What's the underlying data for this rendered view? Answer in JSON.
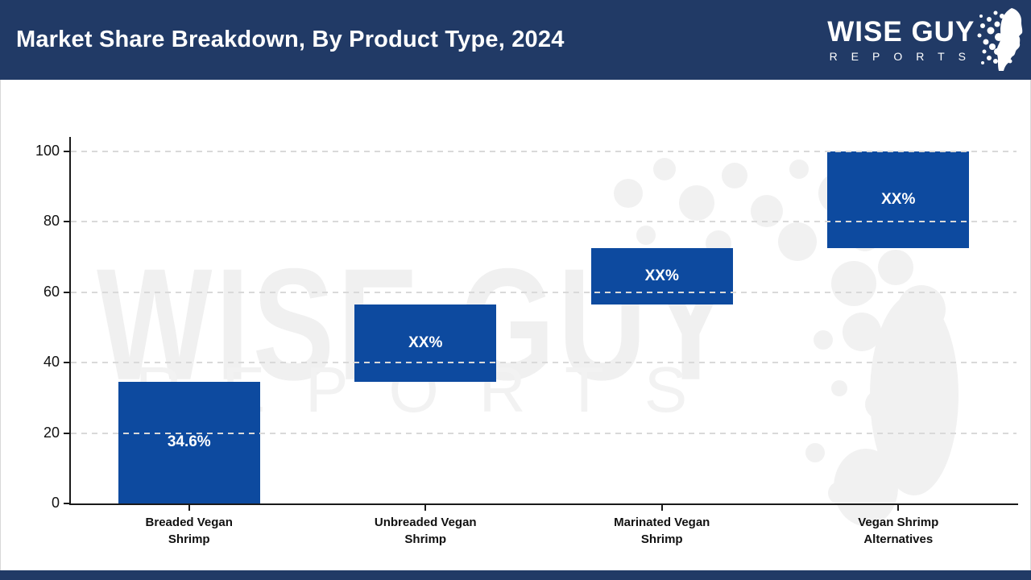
{
  "header": {
    "title": "Market Share Breakdown, By Product Type, 2024",
    "logo": {
      "line1": "WISE GUY",
      "line2": "REPORTS"
    }
  },
  "watermark": {
    "line1": "WISE GUY",
    "line2": "REPORTS"
  },
  "colors": {
    "header_bg": "#213a66",
    "footer_bg": "#213a66",
    "bar_fill": "#0d4a9f",
    "bar_label_text": "#ffffff",
    "gridline": "#d9d9d9",
    "axis": "#1a1a1a",
    "watermark": "#f0f0f0"
  },
  "chart_data": {
    "type": "bar",
    "subtype": "waterfall",
    "title": "Market Share Breakdown, By Product Type, 2024",
    "categories": [
      "Breaded Vegan\nShrimp",
      "Unbreaded Vegan\nShrimp",
      "Marinated Vegan\nShrimp",
      "Vegan Shrimp\nAlternatives"
    ],
    "bars": [
      {
        "start": 0,
        "end": 34.6,
        "label": "34.6%"
      },
      {
        "start": 34.6,
        "end": 56.5,
        "label": "XX%"
      },
      {
        "start": 56.5,
        "end": 72.5,
        "label": "XX%"
      },
      {
        "start": 72.5,
        "end": 100,
        "label": "XX%"
      }
    ],
    "ylim": [
      0,
      100
    ],
    "yticks": [
      0,
      20,
      40,
      60,
      80,
      100
    ],
    "xlabel": "",
    "ylabel": "",
    "grid": "dashed horizontal, drawn over bars",
    "legend": false
  }
}
